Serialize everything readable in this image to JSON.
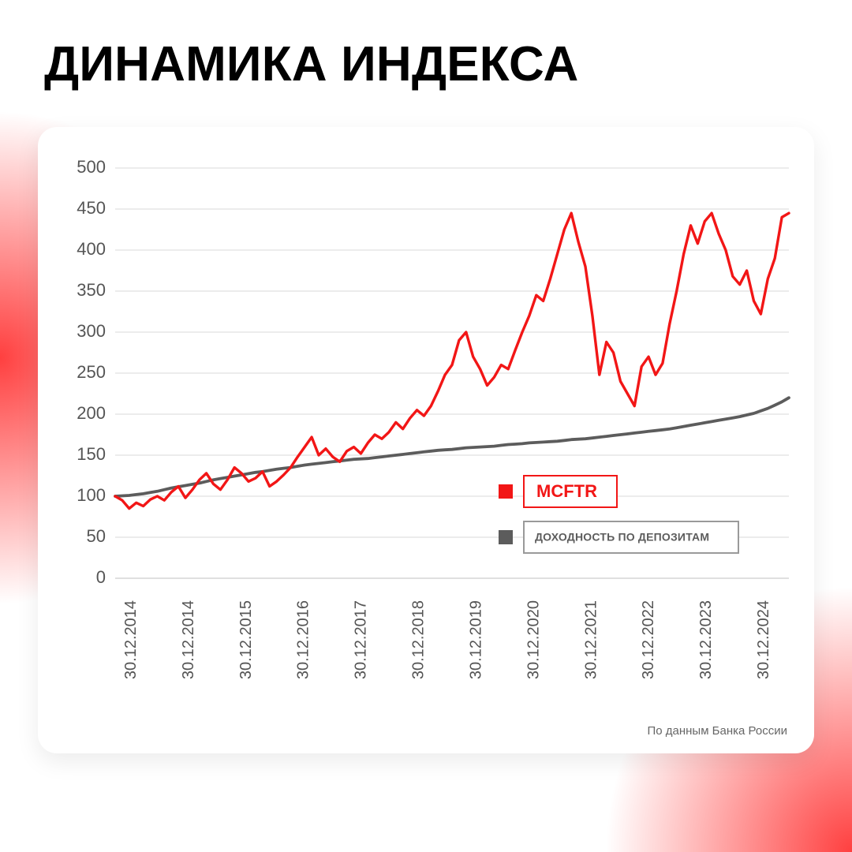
{
  "title": "ДИНАМИКА ИНДЕКСА",
  "attribution": "По данным Банка России",
  "chart": {
    "type": "line",
    "background_color": "#ffffff",
    "grid_color": "#d9d9d9",
    "y": {
      "min": 0,
      "max": 500,
      "ticks": [
        0,
        50,
        100,
        150,
        200,
        250,
        300,
        350,
        400,
        450,
        500
      ],
      "fontsize": 22,
      "color": "#555555"
    },
    "x": {
      "ticks": [
        "30.12.2014",
        "30.12.2014",
        "30.12.2015",
        "30.12.2016",
        "30.12.2017",
        "30.12.2018",
        "30.12.2019",
        "30.12.2020",
        "30.12.2021",
        "30.12.2022",
        "30.12.2023",
        "30.12.2024"
      ],
      "fontsize": 20,
      "color": "#555555",
      "rotate": -90
    },
    "legend": {
      "items": [
        {
          "key": "mcftr",
          "label": "MCFTR",
          "swatch": "#f21616",
          "border": "#f21616",
          "text_color": "#f21616"
        },
        {
          "key": "deposits",
          "label": "ДОХОДНОСТЬ ПО ДЕПОЗИТАМ",
          "swatch": "#5c5c5c",
          "border": "#9a9a9a",
          "text_color": "#5c5c5c"
        }
      ],
      "position": "inside-bottom-right"
    },
    "series": {
      "mcftr": {
        "label": "MCFTR",
        "color": "#f21616",
        "line_width": 3.4,
        "values": [
          100,
          95,
          85,
          92,
          88,
          96,
          100,
          95,
          105,
          112,
          98,
          108,
          120,
          128,
          115,
          108,
          120,
          135,
          128,
          118,
          122,
          130,
          112,
          118,
          126,
          135,
          148,
          160,
          172,
          150,
          158,
          148,
          142,
          155,
          160,
          152,
          165,
          175,
          170,
          178,
          190,
          182,
          195,
          205,
          198,
          210,
          228,
          248,
          260,
          290,
          300,
          270,
          255,
          235,
          245,
          260,
          255,
          278,
          300,
          320,
          345,
          338,
          365,
          395,
          425,
          445,
          410,
          380,
          320,
          248,
          288,
          275,
          240,
          225,
          210,
          258,
          270,
          248,
          262,
          310,
          350,
          395,
          430,
          408,
          435,
          445,
          420,
          400,
          368,
          358,
          375,
          338,
          322,
          365,
          390,
          440,
          445
        ]
      },
      "deposits": {
        "label": "ДОХОДНОСТЬ ПО ДЕПОЗИТАМ",
        "color": "#5c5c5c",
        "line_width": 3.8,
        "values": [
          100,
          100.5,
          101,
          102,
          103,
          104.5,
          106,
          108,
          110,
          111.5,
          113,
          114.5,
          116,
          118,
          120,
          121.5,
          123,
          124.5,
          126,
          127.5,
          129,
          130,
          131.5,
          133,
          134,
          135,
          136.5,
          138,
          139,
          140,
          141,
          142,
          143,
          144,
          145,
          145.5,
          146,
          147,
          148,
          149,
          150,
          151,
          152,
          153,
          154,
          155,
          156,
          156.5,
          157,
          158,
          159,
          159.5,
          160,
          160.5,
          161,
          162,
          163,
          163.5,
          164,
          165,
          165.5,
          166,
          166.5,
          167,
          168,
          169,
          169.5,
          170,
          171,
          172,
          173,
          174,
          175,
          176,
          177,
          178,
          179,
          180,
          181,
          182,
          183.5,
          185,
          186.5,
          188,
          189.5,
          191,
          192.5,
          194,
          195.5,
          197,
          199,
          201,
          204,
          207,
          211,
          215,
          220
        ]
      }
    }
  }
}
